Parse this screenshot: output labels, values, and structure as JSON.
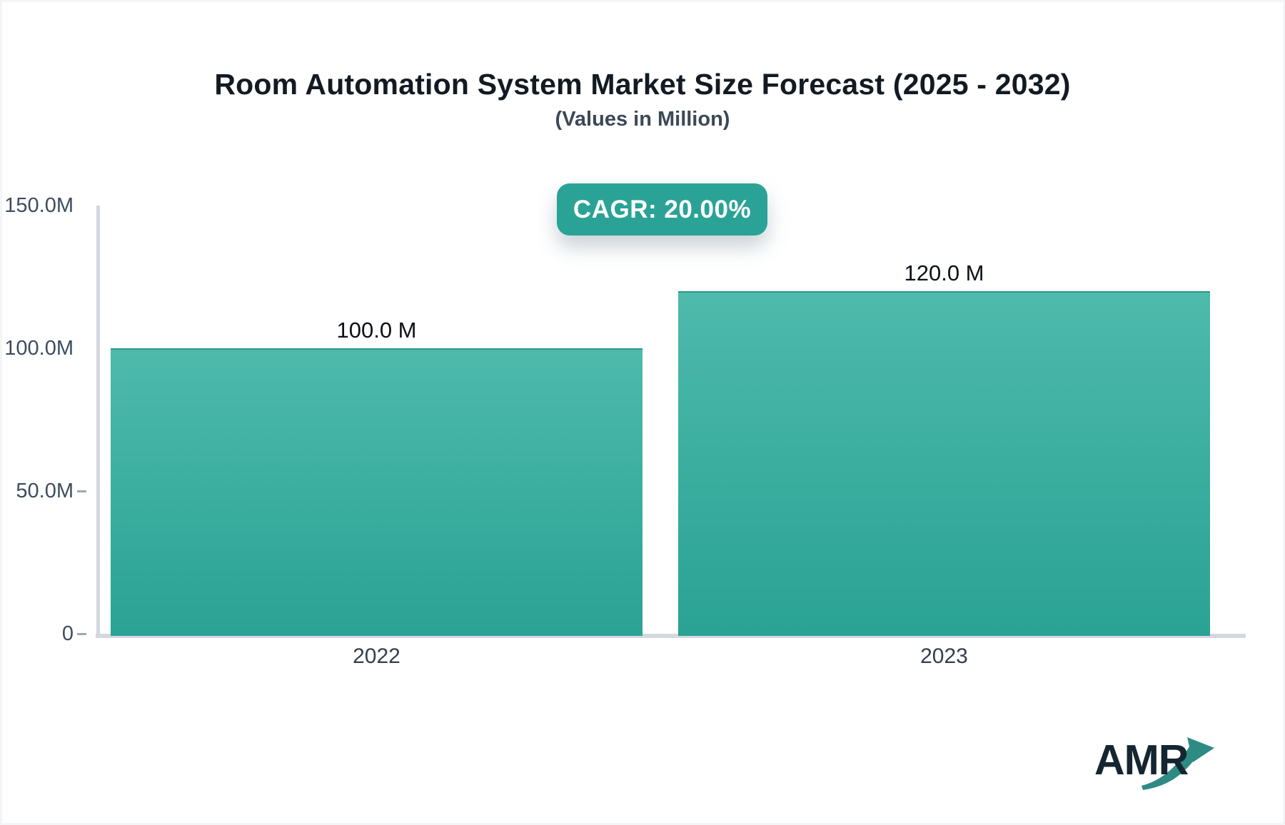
{
  "header": {
    "title": "Room Automation System Market Size Forecast (2025 - 2032)",
    "subtitle": "(Values in Million)"
  },
  "badge": {
    "label": "CAGR: 20.00%",
    "bg_color": "#2aa396",
    "text_color": "#ffffff"
  },
  "chart_data": {
    "type": "bar",
    "title": "Room Automation System Market Size Forecast (2025 - 2032)",
    "subtitle": "(Values in Million)",
    "categories": [
      "2022",
      "2023"
    ],
    "values": [
      100.0,
      120.0
    ],
    "value_labels": [
      "100.0 M",
      "120.0 M"
    ],
    "cagr_label": "CAGR: 20.00%",
    "ylim": [
      0,
      150
    ],
    "grid": false,
    "legend": false,
    "y_ticks": [
      {
        "value": 150,
        "label": "150.0M",
        "dash": false
      },
      {
        "value": 100,
        "label": "100.0M",
        "dash": false
      },
      {
        "value": 50,
        "label": "50.0M",
        "dash": true
      },
      {
        "value": 0,
        "label": "0",
        "dash": true
      }
    ],
    "bar_colors": {
      "top": "#4dbaac",
      "bottom": "#2aa294",
      "top_edge": "#2e9889"
    },
    "axis_color": "#d4d8de",
    "tick_text_color": "#3e4c5e"
  },
  "logo": {
    "text": "AMR",
    "text_color": "#142630",
    "arrow_color": "#2e8b84"
  }
}
